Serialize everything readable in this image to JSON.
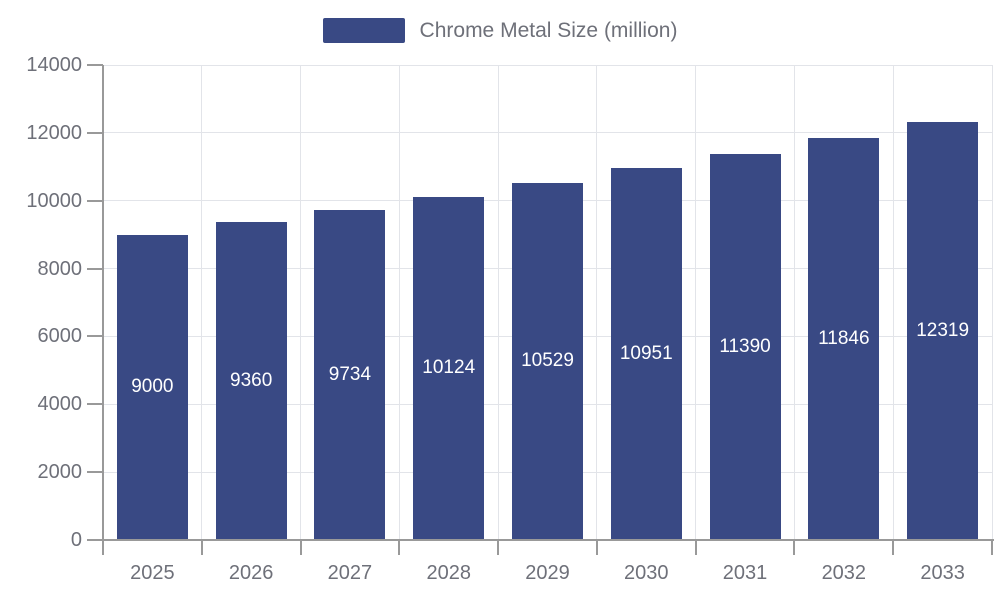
{
  "page": {
    "background_color": "#ffffff"
  },
  "legend": {
    "swatch_color": "#394984",
    "text_color": "#6e7079",
    "position": "top-center"
  },
  "chart_data": {
    "type": "bar",
    "title": "Chrome Metal Size (million)",
    "series_name": "Chrome Metal Size (million)",
    "categories": [
      "2025",
      "2026",
      "2027",
      "2028",
      "2029",
      "2030",
      "2031",
      "2032",
      "2033"
    ],
    "values": [
      9000,
      9360,
      9734,
      10124,
      10529,
      10951,
      11390,
      11846,
      12319
    ],
    "value_labels": [
      "9000",
      "9360",
      "9734",
      "10124",
      "10529",
      "10951",
      "11390",
      "11846",
      "12319"
    ],
    "xlabel": "",
    "ylabel": "",
    "ylim": [
      0,
      14000
    ],
    "yticks": [
      0,
      2000,
      4000,
      6000,
      8000,
      10000,
      12000,
      14000
    ],
    "grid": true,
    "legend_position": "top-center",
    "bar_color": "#394984",
    "value_label_color": "#ffffff",
    "axis_color": "#999999",
    "grid_color": "#e2e4e9",
    "tick_label_color": "#6e7079"
  }
}
